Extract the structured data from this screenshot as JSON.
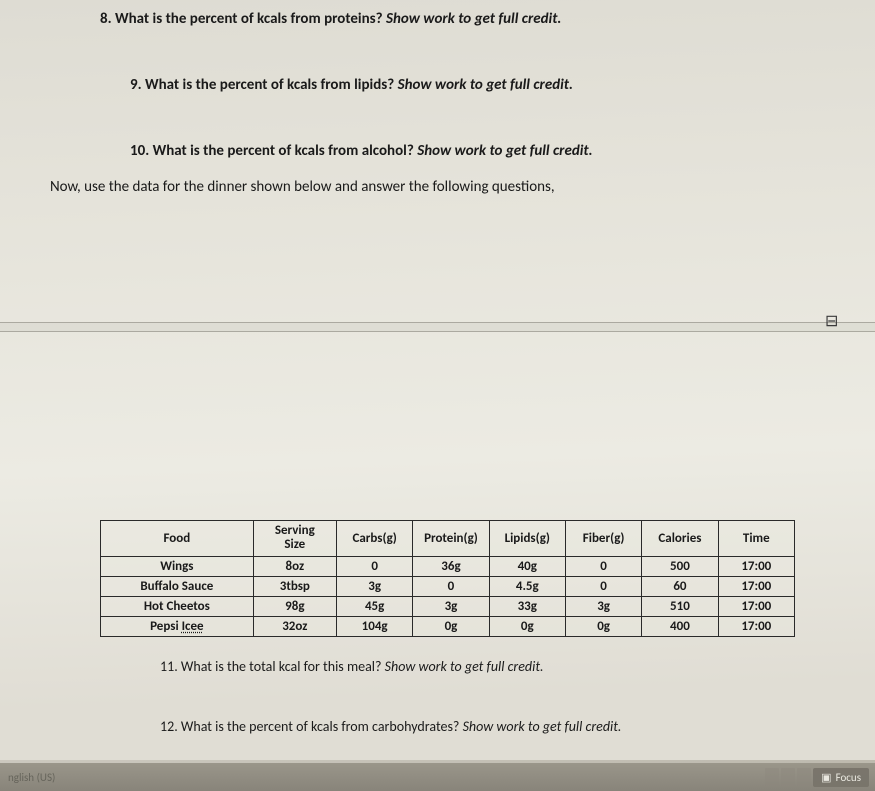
{
  "questions": {
    "q8_num": "8.",
    "q8_text": "What is the percent of kcals from proteins?",
    "q8_em": "Show work to get full credit.",
    "q9_num": "9.",
    "q9_text": "What is the percent of kcals from lipids?",
    "q9_em": "Show work to get full credit.",
    "q10_num": "10.",
    "q10_text": "What is the percent of kcals from alcohol?",
    "q10_em": "Show work to get full credit.",
    "intro": "Now, use the data for the dinner shown below and answer the following questions,",
    "q11_num": "11.",
    "q11_text": "What is the total kcal for this meal?",
    "q11_em": "Show work to get full credit.",
    "q12_num": "12.",
    "q12_text": "What is the percent of kcals from carbohydrates?",
    "q12_em": "Show work to get full credit."
  },
  "table": {
    "headers": {
      "food": "Food",
      "serving_l1": "Serving",
      "serving_l2": "Size",
      "carbs": "Carbs(g)",
      "protein": "Protein(g)",
      "lipids": "Lipids(g)",
      "fiber": "Fiber(g)",
      "calories": "Calories",
      "time": "Time"
    },
    "rows": [
      {
        "food": "Wings",
        "serving": "8oz",
        "carbs": "0",
        "protein": "36g",
        "lipids": "40g",
        "fiber": "0",
        "calories": "500",
        "time": "17:00"
      },
      {
        "food": "Buffalo Sauce",
        "serving": "3tbsp",
        "carbs": "3g",
        "protein": "0",
        "lipids": "4.5g",
        "fiber": "0",
        "calories": "60",
        "time": "17:00"
      },
      {
        "food": "Hot Cheetos",
        "serving": "98g",
        "carbs": "45g",
        "protein": "3g",
        "lipids": "33g",
        "fiber": "3g",
        "calories": "510",
        "time": "17:00"
      },
      {
        "food": "Pepsi Icee",
        "food_dotted": "Icee",
        "food_prefix": "Pepsi ",
        "serving": "32oz",
        "carbs": "104g",
        "protein": "0g",
        "lipids": "0g",
        "fiber": "0g",
        "calories": "400",
        "time": "17:00"
      }
    ]
  },
  "statusbar": {
    "lang": "nglish (US)",
    "focus": "Focus"
  },
  "break_icon": "⊟",
  "colors": {
    "text": "#1a1a1a",
    "border": "#2a2a2a",
    "status_bg": "#88847a"
  }
}
